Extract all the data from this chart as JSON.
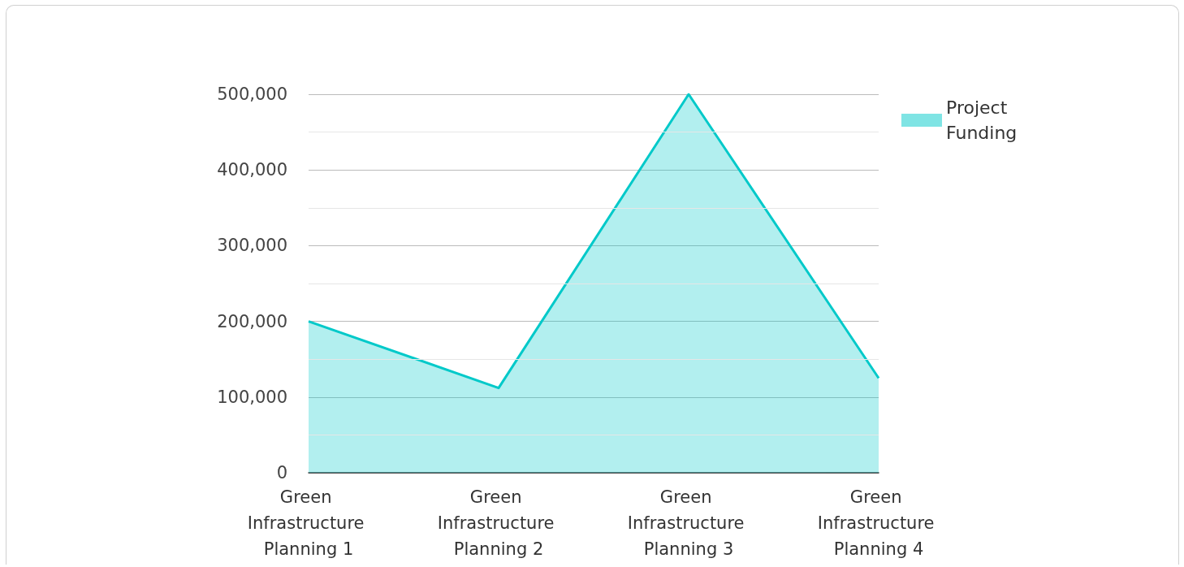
{
  "chart_data": {
    "type": "area",
    "categories": [
      "Green Infrastructure Planning 1",
      "Green Infrastructure Planning 2",
      "Green Infrastructure Planning 3",
      "Green Infrastructure Planning 4"
    ],
    "series": [
      {
        "name": "Project Funding",
        "color": "#00c9c9",
        "values": [
          200000,
          112000,
          500000,
          125000
        ]
      }
    ],
    "ylim": [
      0,
      500000
    ],
    "yticks": [
      0,
      {
        "value": 100000,
        "label": "100,000"
      },
      {
        "value": 200000,
        "label": "200,000"
      },
      {
        "value": 300000,
        "label": "300,000"
      },
      {
        "value": 400000,
        "label": "400,000"
      },
      {
        "value": 500000,
        "label": "500,000"
      }
    ],
    "grid": "y",
    "legend": "top right",
    "marker": "none"
  }
}
